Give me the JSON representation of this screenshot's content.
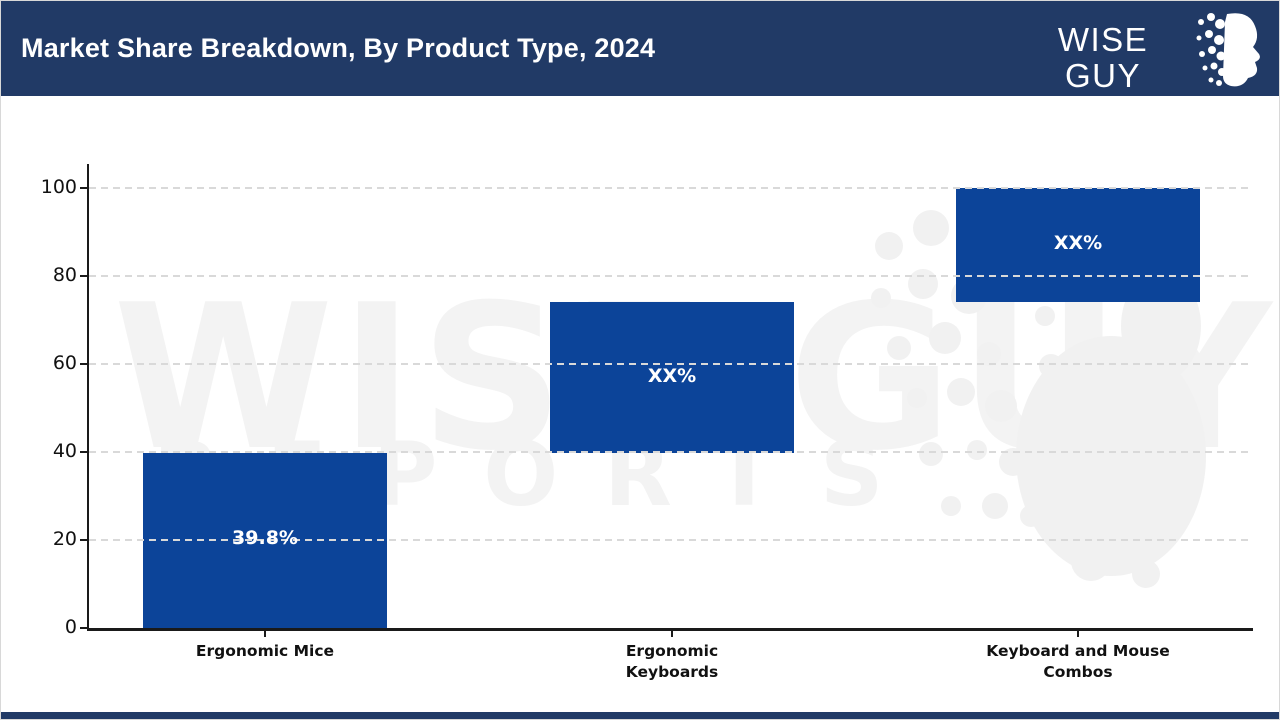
{
  "header": {
    "title": "Market Share Breakdown, By Product Type, 2024",
    "logo": {
      "line1": "WISE GUY",
      "line2": "REPORTS"
    }
  },
  "watermark": {
    "line1": "WISE GUY",
    "line2": "REPORTS"
  },
  "colors": {
    "header_navy": "#213a66",
    "bar_blue": "#0c4499",
    "grid_gray": "#d9d9d9",
    "axis_dark": "#1a1a1a",
    "watermark_gray": "#f3f3f3",
    "bar_label_white": "#ffffff"
  },
  "chart_data": {
    "type": "bar",
    "subtype": "waterfall-floating-bars",
    "title": "Market Share Breakdown, By Product Type, 2024",
    "categories": [
      "Ergonomic Mice",
      "Ergonomic Keyboards",
      "Keyboard and Mouse Combos"
    ],
    "categories_display": [
      "Ergonomic Mice",
      "Ergonomic\nKeyboards",
      "Keyboard and Mouse\nCombos"
    ],
    "segments": [
      {
        "category": "Ergonomic Mice",
        "start": 0,
        "end": 39.8,
        "label": "39.8%"
      },
      {
        "category": "Ergonomic Keyboards",
        "start": 39.8,
        "end": 74.0,
        "label": "XX%"
      },
      {
        "category": "Keyboard and Mouse Combos",
        "start": 74.0,
        "end": 100,
        "label": "XX%"
      }
    ],
    "values": [
      39.8,
      34.2,
      26.0
    ],
    "xlabel": "",
    "ylabel": "",
    "yticks": [
      0,
      20,
      40,
      60,
      80,
      100
    ],
    "ylim": [
      0,
      105.5
    ],
    "grid": "horizontal dashed, drawn above bars",
    "legend": "none"
  }
}
